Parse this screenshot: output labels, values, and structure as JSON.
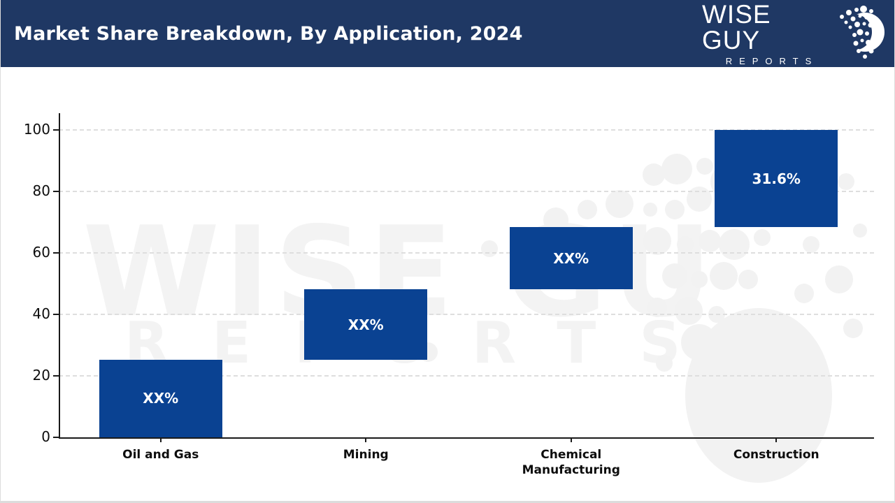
{
  "header": {
    "title": "Market Share Breakdown, By Application, 2024",
    "background": "#1f3864",
    "logo_line1": "WISE GUY",
    "logo_line2": "REPORTS"
  },
  "watermark": {
    "line1": "WISE GU",
    "line2": "REPORTS"
  },
  "chart_data": {
    "type": "bar",
    "subtype": "waterfall-floating-segments",
    "title": "Market Share Breakdown, By Application, 2024",
    "xlabel": "",
    "ylabel": "",
    "categories": [
      "Oil and Gas",
      "Mining",
      "Chemical Manufacturing",
      "Construction"
    ],
    "segments": [
      {
        "category": "Oil and Gas",
        "start": 0,
        "end": 25.3,
        "value": 25.3,
        "label": "XX%"
      },
      {
        "category": "Mining",
        "start": 25.3,
        "end": 48.1,
        "value": 22.8,
        "label": "XX%"
      },
      {
        "category": "Chemical Manufacturing",
        "start": 48.2,
        "end": 68.3,
        "value": 20.1,
        "label": "XX%"
      },
      {
        "category": "Construction",
        "start": 68.4,
        "end": 100,
        "value": 31.6,
        "label": "31.6%"
      }
    ],
    "yticks": [
      0,
      20,
      40,
      60,
      80,
      100
    ],
    "ylim": [
      0,
      105
    ],
    "grid": "horizontal-dashed",
    "legend": "none",
    "bar_color": "#0a4292",
    "bar_label_color": "#ffffff",
    "axis_color": "#1a1a1a",
    "tick_label_color": "#0d0d0d"
  }
}
